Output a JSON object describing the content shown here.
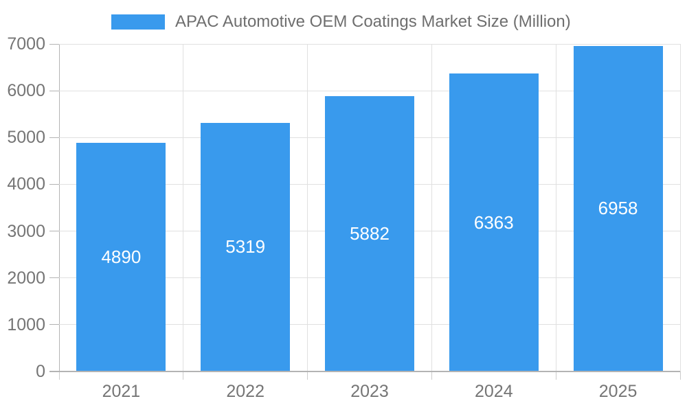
{
  "legend": {
    "series_label": "APAC Automotive OEM Coatings Market Size (Million)",
    "swatch_color": "#399AED"
  },
  "chart_data": {
    "type": "bar",
    "title": "APAC Automotive OEM Coatings Market Size (Million)",
    "categories": [
      "2021",
      "2022",
      "2023",
      "2024",
      "2025"
    ],
    "values": [
      4890,
      5319,
      5882,
      6363,
      6958
    ],
    "xlabel": "",
    "ylabel": "",
    "ylim": [
      0,
      7000
    ],
    "yticks": [
      0,
      1000,
      2000,
      3000,
      4000,
      5000,
      6000,
      7000
    ],
    "grid": true,
    "legend_position": "top",
    "bar_color": "#399AED",
    "value_label_color": "#ffffff",
    "axis_label_color": "#757575",
    "gridline_color": "#e0e0e0"
  }
}
